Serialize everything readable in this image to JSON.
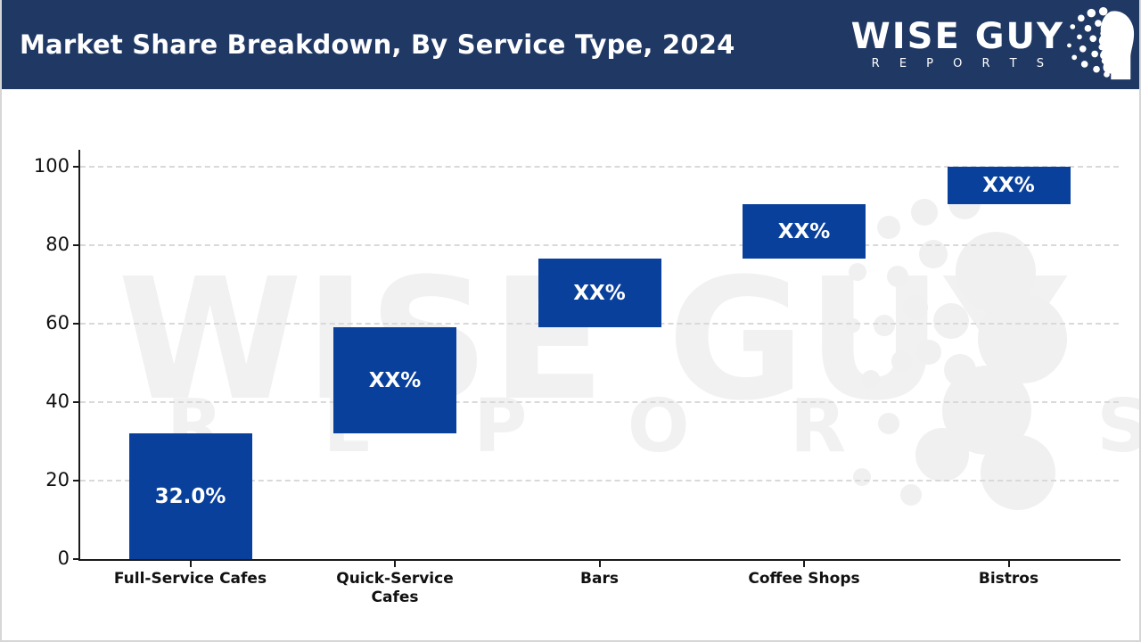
{
  "header": {
    "title": "Market Share Breakdown, By Service Type, 2024",
    "logo": {
      "brand": "WISE GUY",
      "brand_sub": "R E P O R T S"
    }
  },
  "watermark": {
    "line1": "WISE GUY",
    "line2": "R E P O R T S"
  },
  "colors": {
    "header_bg": "#203864",
    "bar": "#09409b",
    "bar_label_text": "#ffffff",
    "axis": "#1a1a1a",
    "gridline": "#d9d9d9",
    "tick_text": "#111111",
    "watermark": "#f1f1f1",
    "frame_border": "#d6d6d6"
  },
  "chart_data": {
    "type": "bar",
    "variant": "waterfall",
    "title": "Market Share Breakdown, By Service Type, 2024",
    "categories": [
      "Full-Service Cafes",
      "Quick-Service Cafes",
      "Bars",
      "Coffee Shops",
      "Bistros"
    ],
    "bars": [
      {
        "category": "Full-Service Cafes",
        "tick_label": "Full-Service Cafes",
        "start": 0,
        "end": 32,
        "value_label": "32.0%"
      },
      {
        "category": "Quick-Service Cafes",
        "tick_label": "Quick-Service\nCafes",
        "start": 32,
        "end": 59,
        "value_label": "XX%"
      },
      {
        "category": "Bars",
        "tick_label": "Bars",
        "start": 59,
        "end": 76.5,
        "value_label": "XX%"
      },
      {
        "category": "Coffee Shops",
        "tick_label": "Coffee Shops",
        "start": 76.5,
        "end": 90.5,
        "value_label": "XX%"
      },
      {
        "category": "Bistros",
        "tick_label": "Bistros",
        "start": 90.5,
        "end": 100,
        "value_label": "XX%"
      }
    ],
    "xlabel": "",
    "ylabel": "",
    "ylim": [
      0,
      100
    ],
    "yticks": [
      0,
      20,
      40,
      60,
      80,
      100
    ],
    "grid": "horizontal-dashed",
    "legend": "none"
  }
}
